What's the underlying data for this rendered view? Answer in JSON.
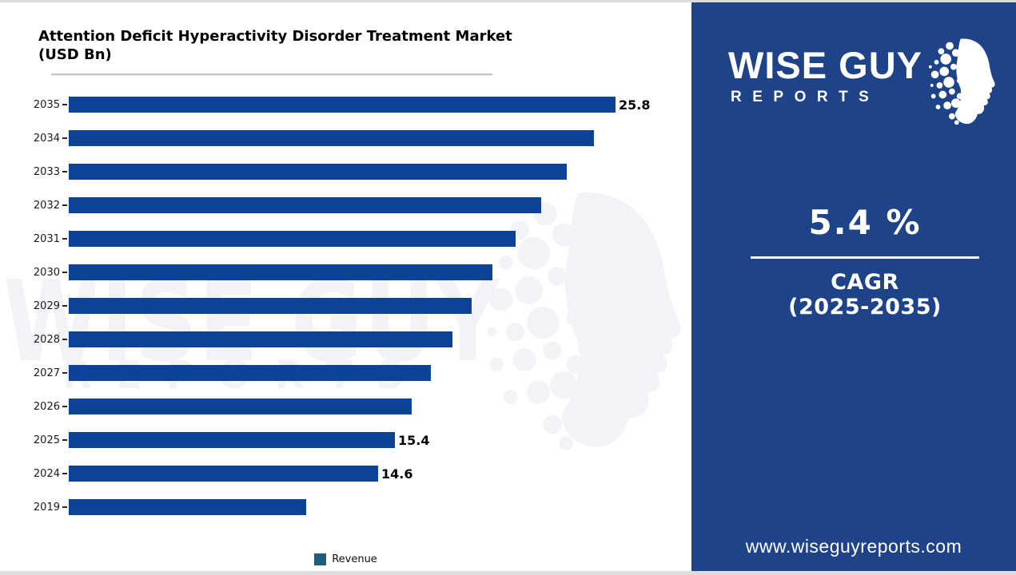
{
  "chart": {
    "title_line1": "Attention Deficit Hyperactivity Disorder Treatment Market",
    "title_line2": "(USD Bn)",
    "legend_label": "Revenue",
    "bar_color": "#0c4399",
    "legend_swatch_color": "#1d5d7e"
  },
  "chart_data": {
    "type": "bar",
    "orientation": "horizontal",
    "title": "Attention Deficit Hyperactivity Disorder Treatment Market (USD Bn)",
    "xlabel": "",
    "ylabel": "",
    "categories": [
      "2035",
      "2034",
      "2033",
      "2032",
      "2031",
      "2030",
      "2029",
      "2028",
      "2027",
      "2026",
      "2025",
      "2024",
      "2019"
    ],
    "values": [
      25.8,
      24.8,
      23.5,
      22.3,
      21.1,
      20.0,
      19.0,
      18.1,
      17.1,
      16.2,
      15.4,
      14.6,
      11.2
    ],
    "data_labels": [
      "25.8",
      "",
      "",
      "",
      "",
      "",
      "",
      "",
      "",
      "",
      "15.4",
      "14.6",
      ""
    ],
    "xlim": [
      0,
      27
    ],
    "grid": false,
    "legend": [
      "Revenue"
    ],
    "legend_position": "bottom"
  },
  "watermark": {
    "line1": "WISE GUY",
    "line2": "REPORTS"
  },
  "panel": {
    "background_color": "#1e4389",
    "logo_line1": "WISE GUY",
    "logo_line2": "REPORTS",
    "cagr_value": "5.4 %",
    "cagr_label": "CAGR",
    "cagr_range": "(2025-2035)",
    "website": "www.wiseguyreports.com"
  }
}
